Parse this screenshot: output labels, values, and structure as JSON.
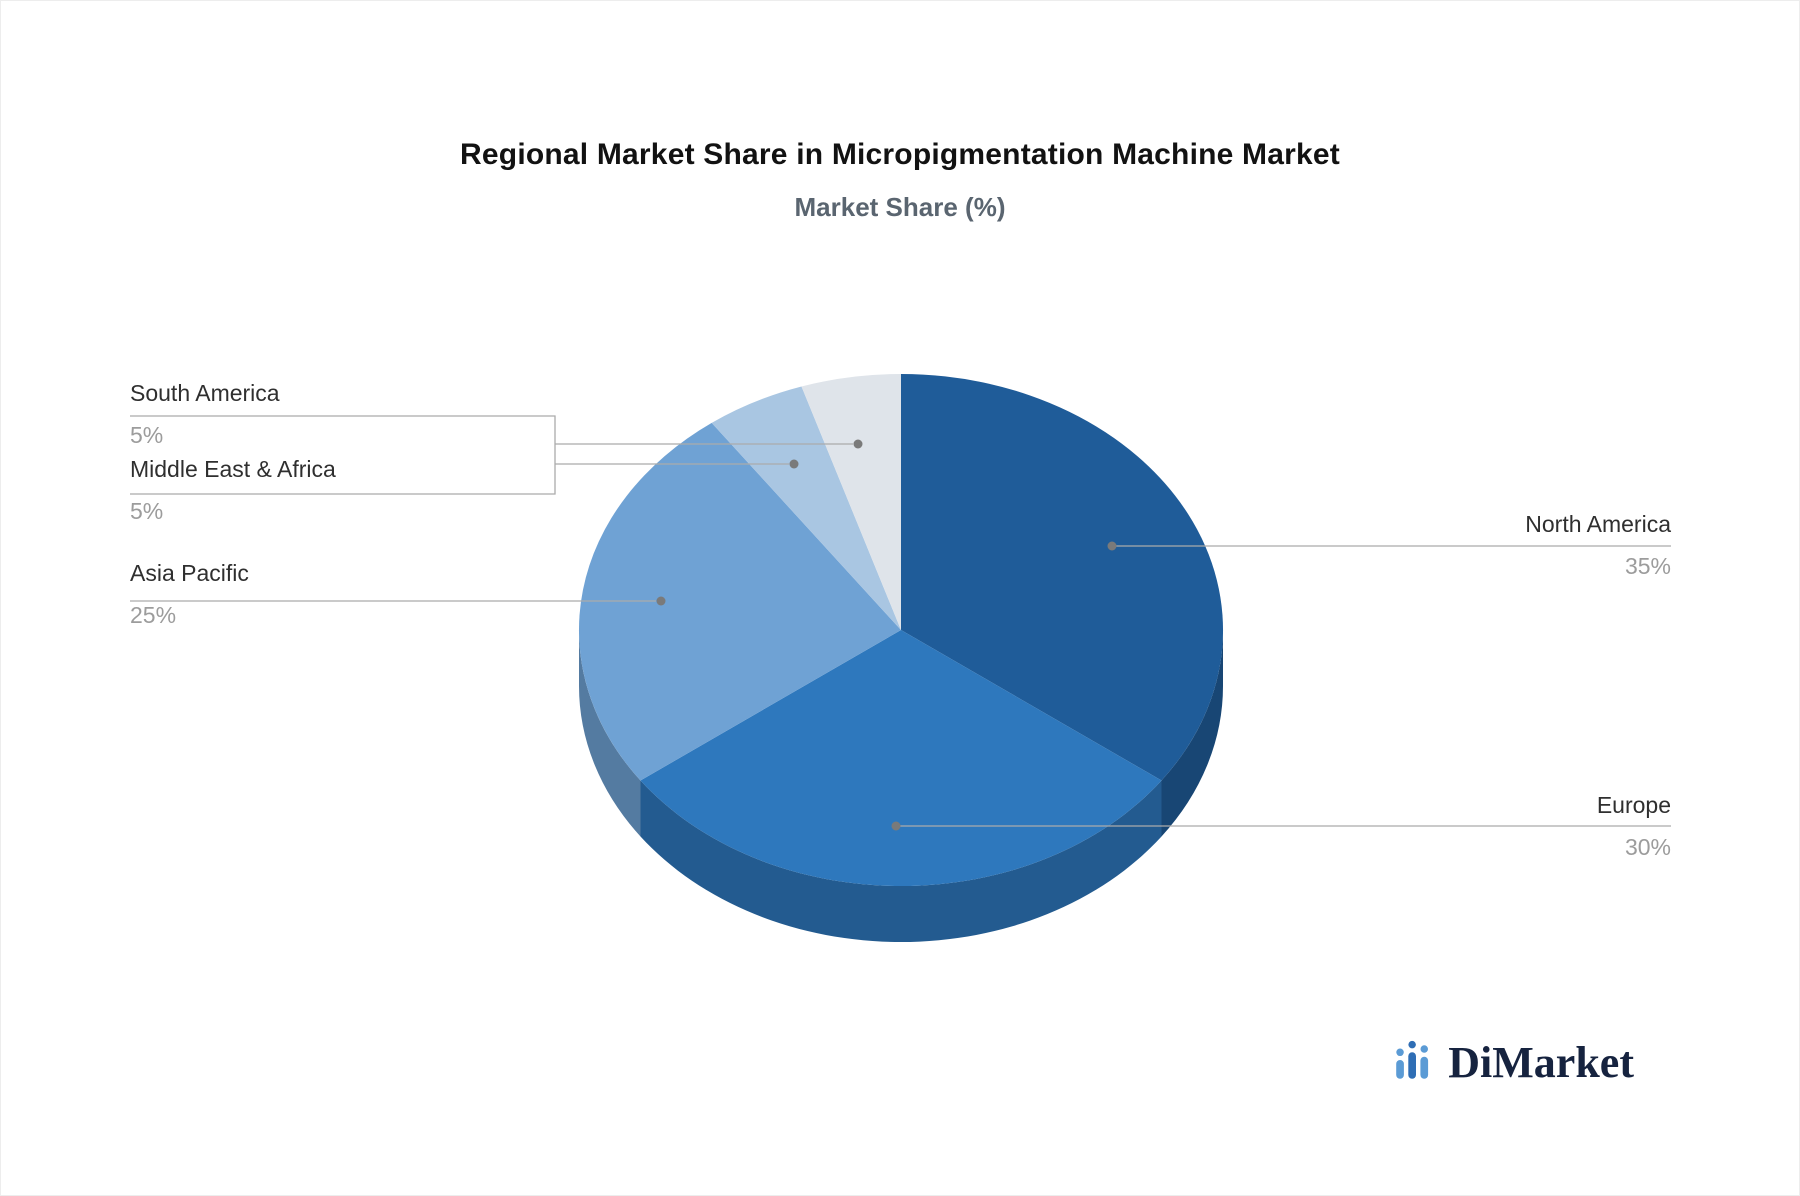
{
  "chart_data": {
    "type": "pie",
    "title": "Regional Market Share in Micropigmentation Machine Market",
    "subtitle": "Market Share (%)",
    "labels": [
      "North America",
      "Europe",
      "Asia Pacific",
      "Middle East & Africa",
      "South America"
    ],
    "values": [
      35,
      30,
      25,
      5,
      5
    ],
    "value_labels": [
      "35%",
      "30%",
      "25%",
      "5%",
      "5%"
    ],
    "colors": [
      "#1f5c99",
      "#2e78bd",
      "#6fa2d4",
      "#a9c6e2",
      "#dfe4ea"
    ],
    "start_angle_deg": -90,
    "direction": "clockwise",
    "effect": "3d",
    "legend": "callout-labels",
    "leader_line_color": "#ababab",
    "leader_dot_color": "#7a7a7a"
  },
  "brand": {
    "name": "DiMarket"
  }
}
